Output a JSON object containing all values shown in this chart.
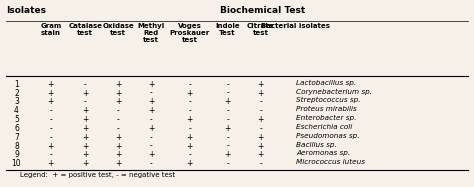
{
  "title_isolates": "Isolates",
  "title_biochem": "Biochemical Test",
  "col_headers": [
    "Gram\nstain",
    "Catalase\ntest",
    "Oxidase\ntest",
    "Methyl\nRed\ntest",
    "Voges\nProskauer\ntest",
    "Indole\nTest",
    "Citrate\ntest",
    "Bacterial isolates"
  ],
  "isolate_numbers": [
    "1",
    "2",
    "3",
    "4",
    "5",
    "6",
    "7",
    "8",
    "9",
    "10"
  ],
  "table_data": [
    [
      "+",
      "-",
      "+",
      "+",
      "-",
      "-",
      "+",
      "Lactobacillus sp."
    ],
    [
      "+",
      "+",
      "+",
      "-",
      "+",
      "-",
      "+",
      "Corynebacterium sp."
    ],
    [
      "+",
      "-",
      "+",
      "+",
      "-",
      "+",
      "-",
      "Streptococcus sp."
    ],
    [
      "-",
      "+",
      "-",
      "+",
      "-",
      "-",
      "-",
      "Proteus mirabilis"
    ],
    [
      "-",
      "+",
      "-",
      "-",
      "+",
      "-",
      "+",
      "Enterobacter sp."
    ],
    [
      "-",
      "+",
      "-",
      "+",
      "-",
      "+",
      "-",
      "Escherichia coli"
    ],
    [
      "-",
      "+",
      "+",
      "-",
      "+",
      "-",
      "+",
      "Pseudomonas sp."
    ],
    [
      "+",
      "+",
      "+",
      "-",
      "+",
      "-",
      "+",
      "Bacillus sp."
    ],
    [
      "-",
      "+",
      "+",
      "+",
      "-",
      "+",
      "+",
      "Aeromonas sp."
    ],
    [
      "+",
      "+",
      "+",
      "-",
      "+",
      "-",
      "-",
      "Micrococcus luteus"
    ]
  ],
  "legend": "Legend:  + = positive test, - = negative test",
  "bg_color": "#f5f0e8"
}
